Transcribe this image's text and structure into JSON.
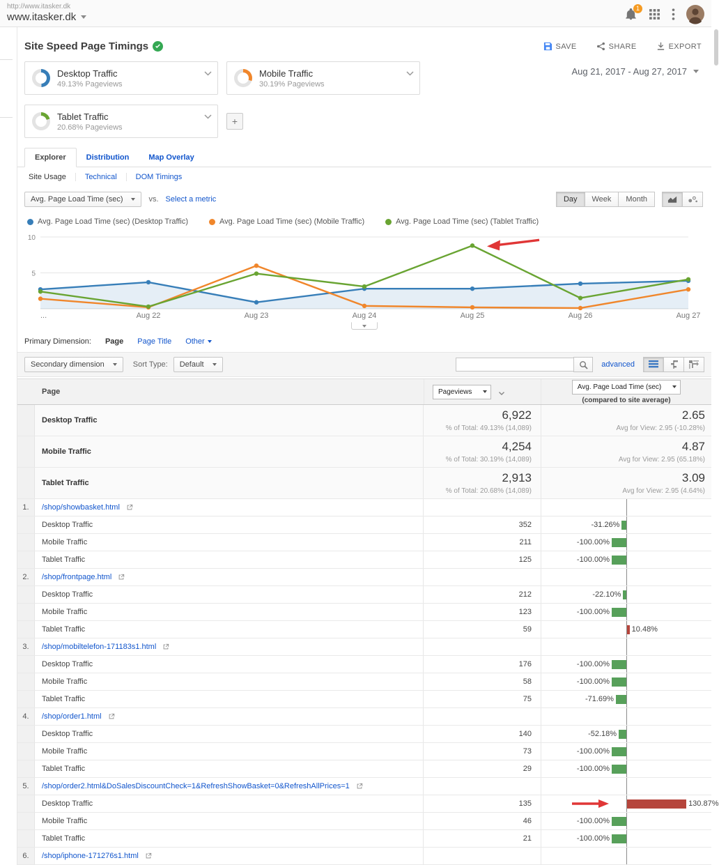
{
  "header": {
    "small_url": "http://www.itasker.dk",
    "site_name": "www.itasker.dk",
    "bell_badge": "1"
  },
  "title_bar": {
    "title": "Site Speed Page Timings",
    "save": "SAVE",
    "share": "SHARE",
    "export": "EXPORT"
  },
  "segments": [
    {
      "name": "Desktop Traffic",
      "sub": "49.13% Pageviews",
      "color": "#377eb8",
      "pct": 49.13
    },
    {
      "name": "Mobile Traffic",
      "sub": "30.19% Pageviews",
      "color": "#f0862b",
      "pct": 30.19
    },
    {
      "name": "Tablet Traffic",
      "sub": "20.68% Pageviews",
      "color": "#69a432",
      "pct": 20.68
    }
  ],
  "segments_add": "+",
  "date_range": "Aug 21, 2017 - Aug 27, 2017",
  "tabs": [
    {
      "label": "Explorer"
    },
    {
      "label": "Distribution"
    },
    {
      "label": "Map Overlay"
    }
  ],
  "subtabs": [
    "Site Usage",
    "Technical",
    "DOM Timings"
  ],
  "metric_bar": {
    "metric": "Avg. Page Load Time (sec)",
    "vs": "vs.",
    "select_metric": "Select a metric",
    "granularity": [
      "Day",
      "Week",
      "Month"
    ],
    "active_granularity": "Day"
  },
  "chart_data": {
    "type": "line",
    "x": [
      "...",
      "Aug 22",
      "Aug 23",
      "Aug 24",
      "Aug 25",
      "Aug 26",
      "Aug 27"
    ],
    "ylim": [
      0,
      10
    ],
    "yticks": [
      5,
      10
    ],
    "grid": "horizontal",
    "legend_position": "top",
    "series": [
      {
        "name": "Avg. Page Load Time (sec) (Desktop Traffic)",
        "color": "#377eb8",
        "area": true,
        "values": [
          2.7,
          3.7,
          0.9,
          2.8,
          2.8,
          3.5,
          3.9
        ]
      },
      {
        "name": "Avg. Page Load Time (sec) (Mobile Traffic)",
        "color": "#f0862b",
        "values": [
          1.4,
          0.2,
          6.0,
          0.4,
          0.2,
          0.1,
          2.7
        ]
      },
      {
        "name": "Avg. Page Load Time (sec) (Tablet Traffic)",
        "color": "#69a432",
        "values": [
          2.4,
          0.3,
          4.9,
          3.1,
          8.8,
          1.5,
          4.1
        ]
      }
    ],
    "annotation": "red arrow pointing at Tablet Traffic peak (Aug 25)"
  },
  "primary_dimension": {
    "label": "Primary Dimension:",
    "options": [
      "Page",
      "Page Title",
      "Other"
    ]
  },
  "toolbar": {
    "secondary": "Secondary dimension",
    "sort_label": "Sort Type:",
    "sort_value": "Default",
    "advanced": "advanced",
    "search_value": ""
  },
  "table": {
    "col_page": "Page",
    "col_pageviews": "Pageviews",
    "col_metric": "Avg. Page Load Time (sec)",
    "col_metric_sub": "(compared to site average)",
    "totals": [
      {
        "name": "Desktop Traffic",
        "pageviews": "6,922",
        "pv_sub": "% of Total: 49.13% (14,089)",
        "metric": "2.65",
        "metric_sub": "Avg for View: 2.95 (-10.28%)"
      },
      {
        "name": "Mobile Traffic",
        "pageviews": "4,254",
        "pv_sub": "% of Total: 30.19% (14,089)",
        "metric": "4.87",
        "metric_sub": "Avg for View: 2.95 (65.18%)"
      },
      {
        "name": "Tablet Traffic",
        "pageviews": "2,913",
        "pv_sub": "% of Total: 20.68% (14,089)",
        "metric": "3.09",
        "metric_sub": "Avg for View: 2.95 (4.64%)"
      }
    ],
    "rows": [
      {
        "num": "1.",
        "url": "/shop/showbasket.html",
        "subs": [
          {
            "name": "Desktop Traffic",
            "pageviews": "352",
            "delta": "-31.26%"
          },
          {
            "name": "Mobile Traffic",
            "pageviews": "211",
            "delta": "-100.00%"
          },
          {
            "name": "Tablet Traffic",
            "pageviews": "125",
            "delta": "-100.00%"
          }
        ]
      },
      {
        "num": "2.",
        "url": "/shop/frontpage.html",
        "subs": [
          {
            "name": "Desktop Traffic",
            "pageviews": "212",
            "delta": "-22.10%"
          },
          {
            "name": "Mobile Traffic",
            "pageviews": "123",
            "delta": "-100.00%"
          },
          {
            "name": "Tablet Traffic",
            "pageviews": "59",
            "delta": "10.48%"
          }
        ]
      },
      {
        "num": "3.",
        "url": "/shop/mobiltelefon-171183s1.html",
        "subs": [
          {
            "name": "Desktop Traffic",
            "pageviews": "176",
            "delta": "-100.00%"
          },
          {
            "name": "Mobile Traffic",
            "pageviews": "58",
            "delta": "-100.00%"
          },
          {
            "name": "Tablet Traffic",
            "pageviews": "75",
            "delta": "-71.69%"
          }
        ]
      },
      {
        "num": "4.",
        "url": "/shop/order1.html",
        "subs": [
          {
            "name": "Desktop Traffic",
            "pageviews": "140",
            "delta": "-52.18%"
          },
          {
            "name": "Mobile Traffic",
            "pageviews": "73",
            "delta": "-100.00%"
          },
          {
            "name": "Tablet Traffic",
            "pageviews": "29",
            "delta": "-100.00%"
          }
        ]
      },
      {
        "num": "5.",
        "url": "/shop/order2.html&DoSalesDiscountCheck=1&RefreshShowBasket=0&RefreshAllPrices=1",
        "subs": [
          {
            "name": "Desktop Traffic",
            "pageviews": "135",
            "delta": "130.87%",
            "arrow": true
          },
          {
            "name": "Mobile Traffic",
            "pageviews": "46",
            "delta": "-100.00%"
          },
          {
            "name": "Tablet Traffic",
            "pageviews": "21",
            "delta": "-100.00%"
          }
        ]
      },
      {
        "num": "6.",
        "url": "/shop/iphone-171276s1.html",
        "subs": []
      }
    ]
  },
  "colors": {
    "link": "#1155cc",
    "bar_neg": "#57a05a",
    "bar_pos": "#b6453c",
    "axis": "#8c8c8c",
    "arrow": "#e03636",
    "badge": "#f59b23",
    "check": "#34a853"
  }
}
